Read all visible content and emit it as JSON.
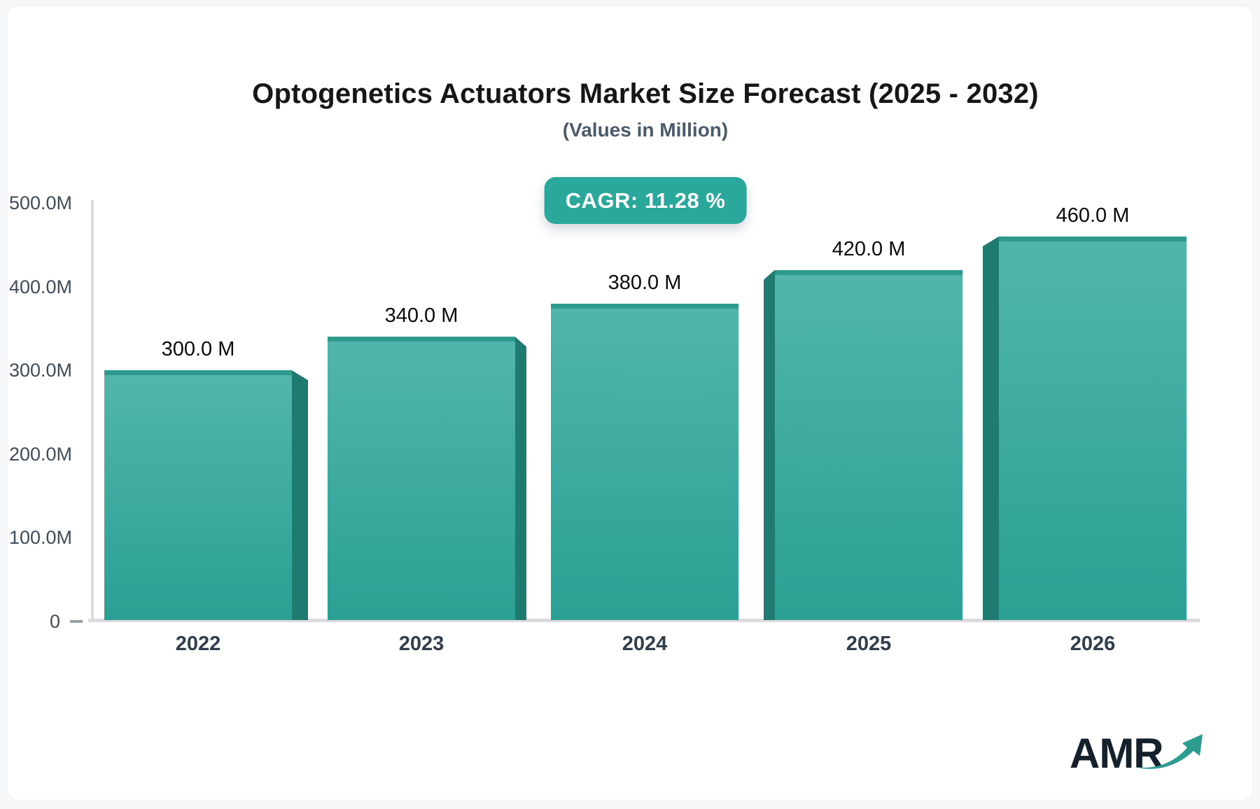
{
  "page": {
    "background": "#f6f7f8",
    "card_background": "#ffffff"
  },
  "chart_data": {
    "type": "bar",
    "title": "Optogenetics Actuators Market Size Forecast (2025 - 2032)",
    "subtitle": "(Values in Million)",
    "cagr_badge": "CAGR: 11.28 %",
    "categories": [
      "2022",
      "2023",
      "2024",
      "2025",
      "2026"
    ],
    "values": [
      300,
      340,
      380,
      420,
      460
    ],
    "value_labels": [
      "300.0 M",
      "340.0 M",
      "380.0 M",
      "420.0 M",
      "460.0 M"
    ],
    "ylim": [
      0,
      500
    ],
    "y_ticks": [
      {
        "label": "500.0M",
        "value": 500
      },
      {
        "label": "400.0M",
        "value": 400
      },
      {
        "label": "300.0M",
        "value": 300
      },
      {
        "label": "200.0M",
        "value": 200
      },
      {
        "label": "100.0M",
        "value": 100
      },
      {
        "label": "0",
        "value": 0,
        "dash": true
      }
    ],
    "grid": false,
    "legend_position": "none",
    "bar_colors": {
      "face_top": "#52b5ab",
      "face_bottom": "#2aa093",
      "top_strip": "#2e9a8e",
      "side": "#1f7a6f"
    },
    "perspective": {
      "directions": [
        "right",
        "right",
        "none",
        "left",
        "left"
      ],
      "side_widths": [
        23,
        16,
        0,
        16,
        23
      ],
      "bevel": 14
    },
    "axis_color": "#d9dbdf",
    "tick_label_color": "#3e4b58",
    "category_label_color": "#303d4c"
  },
  "badge": {
    "background": "#2aa89b",
    "text_color": "#ffffff"
  },
  "footer": {
    "logo_text": "AMR",
    "logo_text_color": "#14202c",
    "arrow_color": "#2d9c90"
  }
}
